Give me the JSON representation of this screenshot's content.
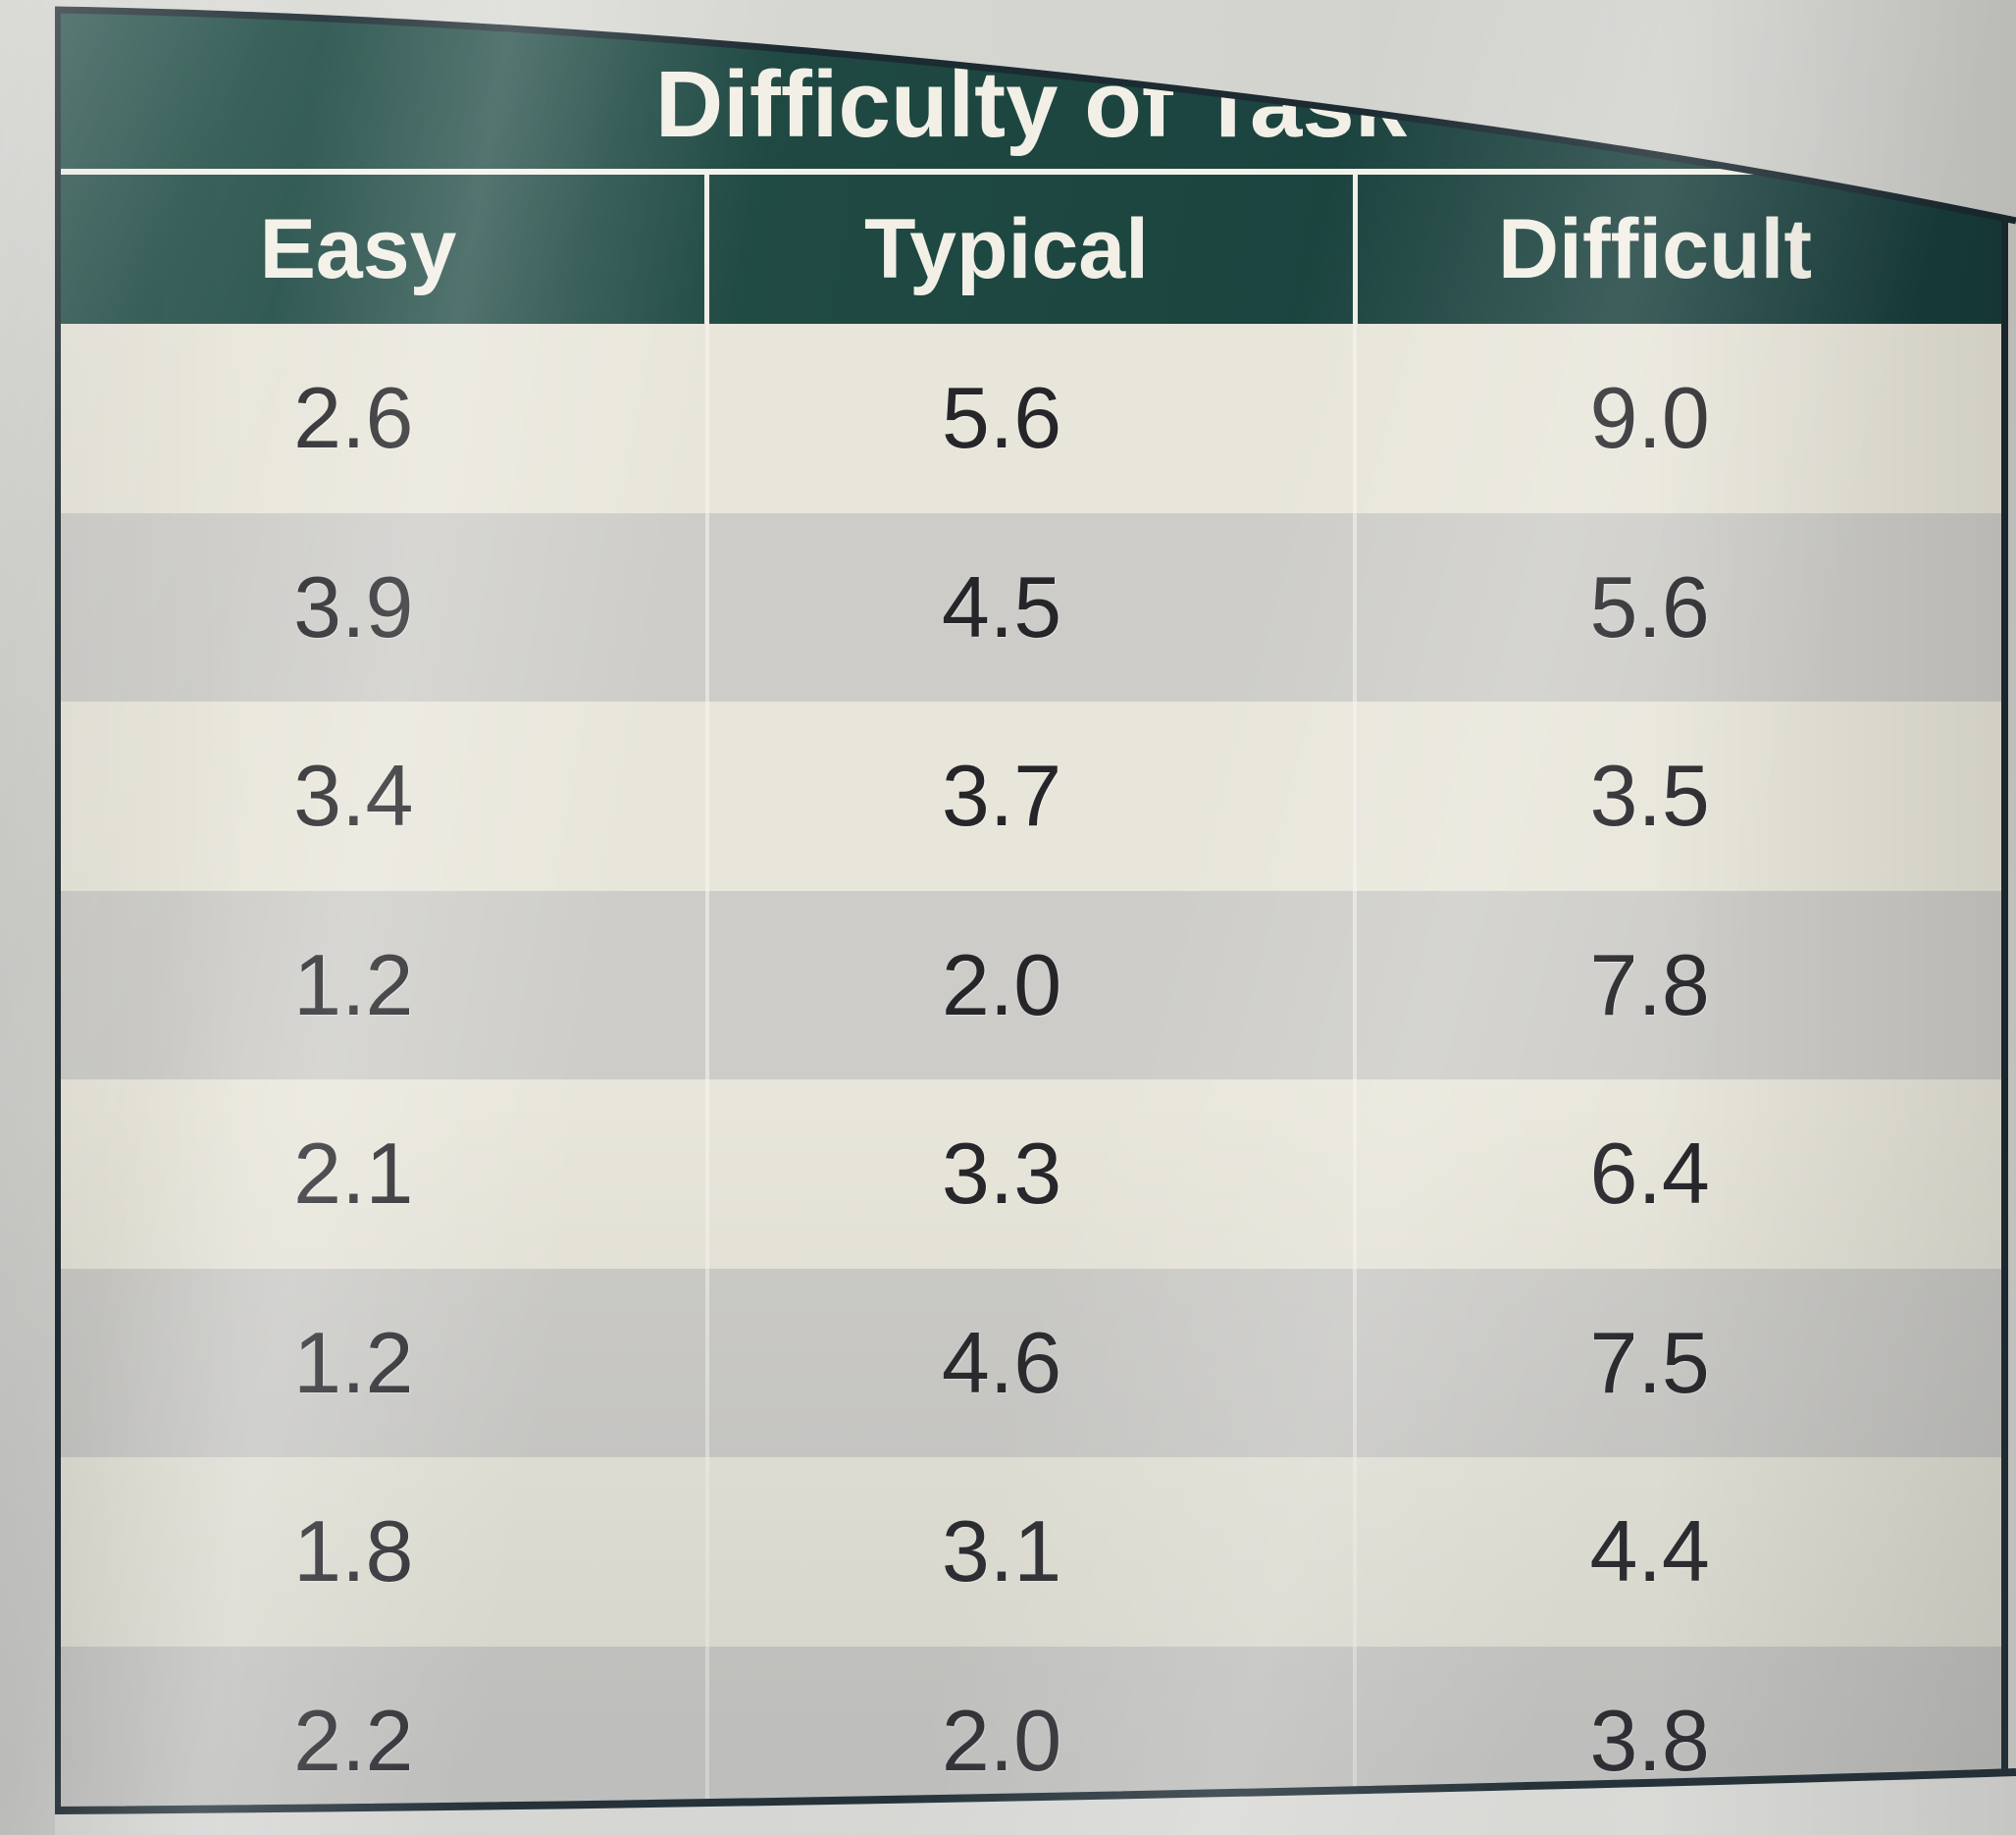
{
  "table": {
    "title": "Difficulty of Task",
    "columns": [
      "Easy",
      "Typical",
      "Difficult"
    ],
    "rows": [
      [
        "2.6",
        "5.6",
        "9.0"
      ],
      [
        "3.9",
        "4.5",
        "5.6"
      ],
      [
        "3.4",
        "3.7",
        "3.5"
      ],
      [
        "1.2",
        "2.0",
        "7.8"
      ],
      [
        "2.1",
        "3.3",
        "6.4"
      ],
      [
        "1.2",
        "4.6",
        "7.5"
      ],
      [
        "1.8",
        "3.1",
        "4.4"
      ],
      [
        "2.2",
        "2.0",
        "3.8"
      ]
    ]
  },
  "chart_data": {
    "type": "table",
    "title": "Difficulty of Task",
    "columns": [
      "Easy",
      "Typical",
      "Difficult"
    ],
    "rows": [
      [
        2.6,
        5.6,
        9.0
      ],
      [
        3.9,
        4.5,
        5.6
      ],
      [
        3.4,
        3.7,
        3.5
      ],
      [
        1.2,
        2.0,
        7.8
      ],
      [
        2.1,
        3.3,
        6.4
      ],
      [
        1.2,
        4.6,
        7.5
      ],
      [
        1.8,
        3.1,
        4.4
      ],
      [
        2.2,
        2.0,
        3.8
      ]
    ]
  },
  "colors": {
    "header_bg": "#1e4741",
    "header_text": "#f2f0e6",
    "row_light": "#e8e6da",
    "row_dark": "#cdccc8",
    "cell_text": "#26262a",
    "table_border": "#1c2a31",
    "page_bg": "#d2d2ce",
    "divider": "#f3f2ea"
  }
}
